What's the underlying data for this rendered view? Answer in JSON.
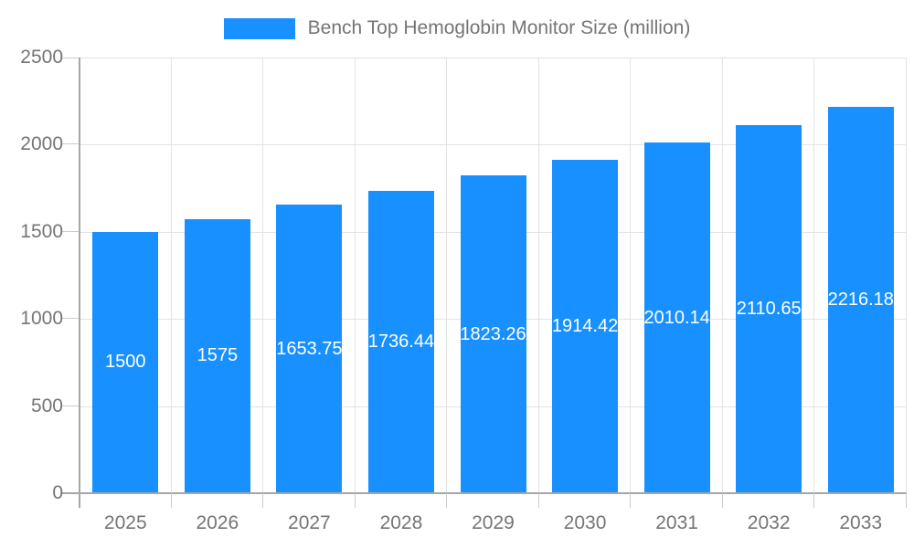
{
  "legend": {
    "label": "Bench Top Hemoglobin Monitor Size (million)"
  },
  "colors": {
    "bar": "#1890ff",
    "axis": "#a6a6a6",
    "grid": "#e3e3e3",
    "tick": "#cccccc",
    "text": "#757575",
    "bar_label": "#ffffff",
    "background": "#ffffff"
  },
  "chart_data": {
    "type": "bar",
    "title": "Bench Top Hemoglobin Monitor Size (million)",
    "categories": [
      "2025",
      "2026",
      "2027",
      "2028",
      "2029",
      "2030",
      "2031",
      "2032",
      "2033"
    ],
    "values": [
      1500,
      1575,
      1653.75,
      1736.44,
      1823.26,
      1914.42,
      2010.14,
      2110.65,
      2216.18
    ],
    "value_labels": [
      "1500",
      "1575",
      "1653.75",
      "1736.44",
      "1823.26",
      "1914.42",
      "2010.14",
      "2110.65",
      "2216.18"
    ],
    "series": [
      {
        "name": "Bench Top Hemoglobin Monitor Size (million)",
        "values": [
          1500,
          1575,
          1653.75,
          1736.44,
          1823.26,
          1914.42,
          2010.14,
          2110.65,
          2216.18
        ]
      }
    ],
    "xlabel": "",
    "ylabel": "",
    "ylim": [
      0,
      2500
    ],
    "yticks": [
      0,
      500,
      1000,
      1500,
      2000,
      2500
    ],
    "grid": true,
    "legend_position": "top"
  }
}
